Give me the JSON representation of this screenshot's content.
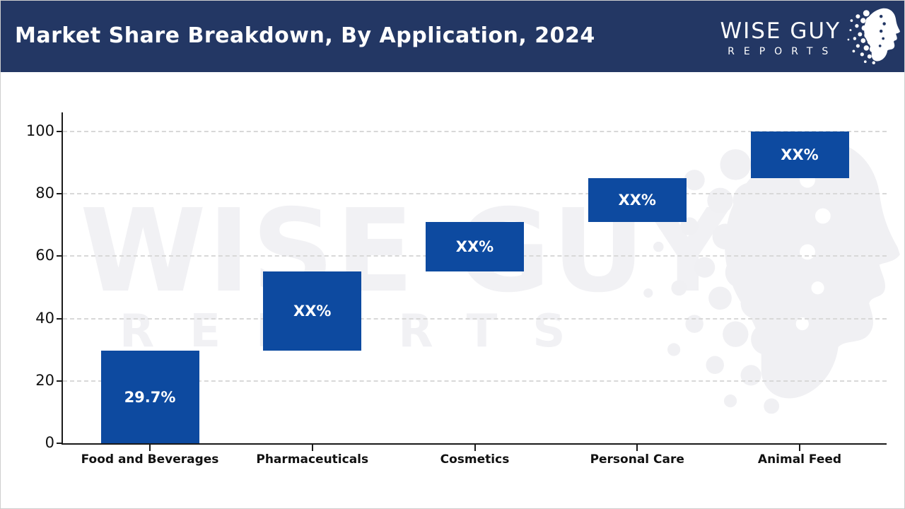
{
  "header": {
    "title": "Market Share Breakdown, By Application, 2024",
    "logo": {
      "line1": "WISE GUY",
      "line2": "REPORTS"
    }
  },
  "watermark": {
    "line1": "WISE GUY",
    "line2": "REPORTS"
  },
  "colors": {
    "header_bg": "#233764",
    "bar": "#0d4aa0",
    "axis": "#1a1a1a",
    "gridline": "#d8d8d8",
    "bar_label": "#ffffff",
    "watermark": "#f1f1f4"
  },
  "chart_data": {
    "type": "bar",
    "subtype": "waterfall",
    "title": "Market Share Breakdown, By Application, 2024",
    "categories": [
      "Food and Beverages",
      "Pharmaceuticals",
      "Cosmetics",
      "Personal Care",
      "Animal Feed"
    ],
    "segments": [
      {
        "category": "Food and Beverages",
        "start": 0,
        "end": 29.7,
        "label": "29.7%"
      },
      {
        "category": "Pharmaceuticals",
        "start": 29.7,
        "end": 55,
        "label": "XX%"
      },
      {
        "category": "Cosmetics",
        "start": 55,
        "end": 71,
        "label": "XX%"
      },
      {
        "category": "Personal Care",
        "start": 71,
        "end": 85,
        "label": "XX%"
      },
      {
        "category": "Animal Feed",
        "start": 85,
        "end": 100,
        "label": "XX%"
      }
    ],
    "yticks": [
      0,
      20,
      40,
      60,
      80,
      100
    ],
    "ylim": [
      0,
      105
    ],
    "xlabel": "",
    "ylabel": "",
    "grid": "dashed-horizontal",
    "legend": "none"
  }
}
